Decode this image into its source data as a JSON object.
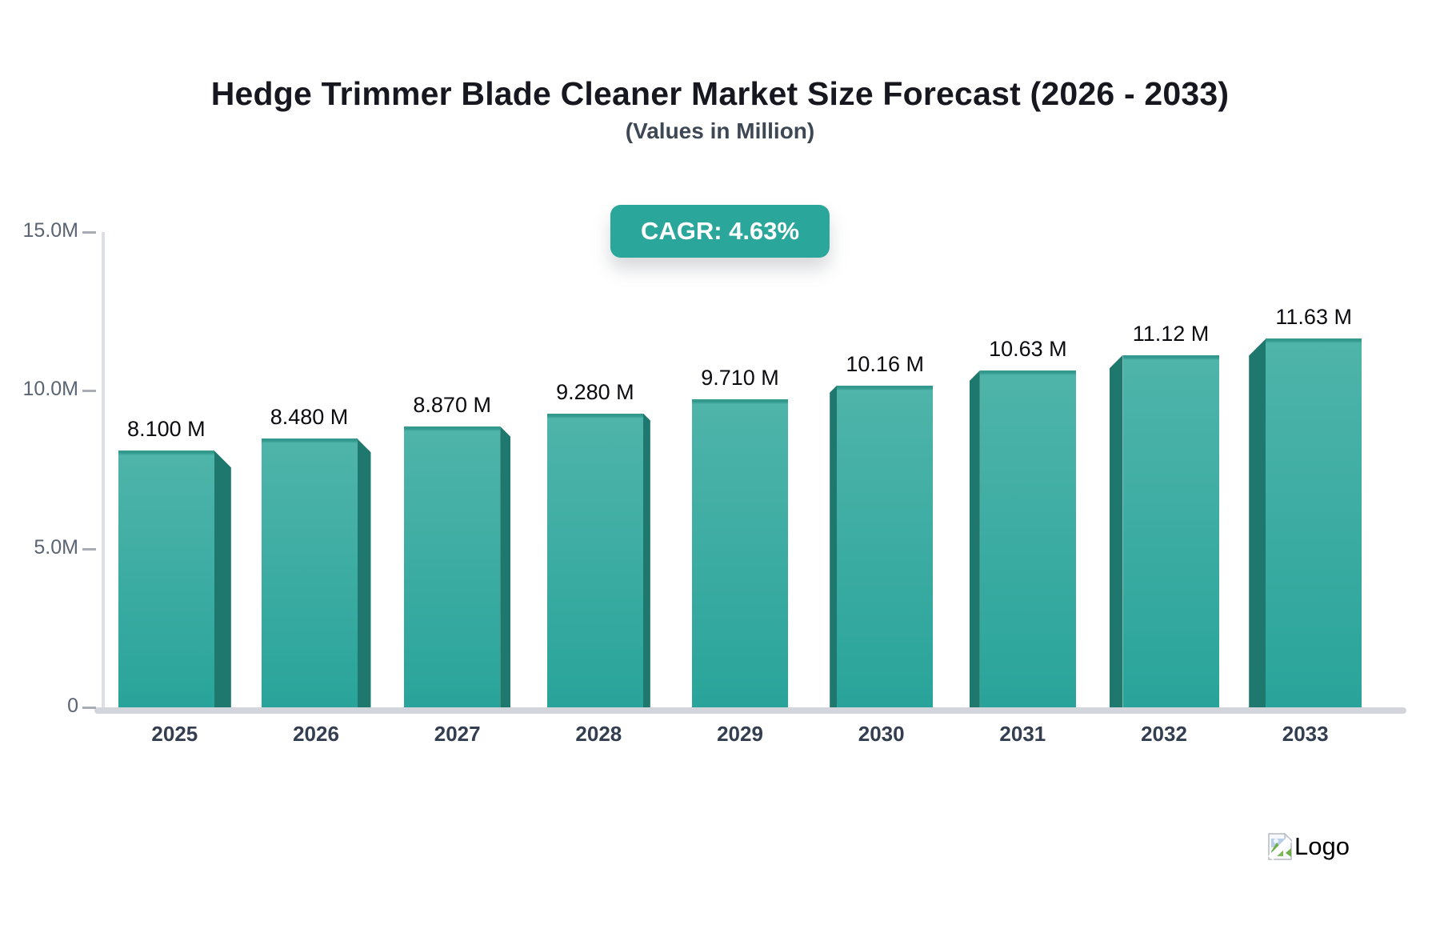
{
  "header": {
    "title": "Hedge Trimmer Blade Cleaner Market Size Forecast (2026 - 2033)",
    "subtitle": "(Values in Million)"
  },
  "badge": {
    "label": "CAGR: 4.63%",
    "bg": "#2aa69b",
    "text_color": "#ffffff"
  },
  "chart_data": {
    "type": "bar",
    "title": "Hedge Trimmer Blade Cleaner Market Size Forecast (2026 - 2033)",
    "subtitle": "(Values in Million)",
    "annotation": "CAGR: 4.63%",
    "categories": [
      "2025",
      "2026",
      "2027",
      "2028",
      "2029",
      "2030",
      "2031",
      "2032",
      "2033"
    ],
    "values": [
      8.1,
      8.48,
      8.87,
      9.28,
      9.71,
      10.16,
      10.63,
      11.12,
      11.63
    ],
    "value_labels": [
      "8.100 M",
      "8.480 M",
      "8.870 M",
      "9.280 M",
      "9.710 M",
      "10.16 M",
      "10.63 M",
      "11.12 M",
      "11.63 M"
    ],
    "unit": "Million",
    "xlabel": "",
    "ylabel": "",
    "ylim": [
      0,
      15
    ],
    "yticks": [
      {
        "label": "15.0M",
        "value": 15.0
      },
      {
        "label": "10.0M",
        "value": 10.0
      },
      {
        "label": "5.0M",
        "value": 5.0
      },
      {
        "label": "0",
        "value": 0
      }
    ],
    "grid": false,
    "legend": null,
    "bar_color_top": "#4fb4aa",
    "bar_color_bottom": "#29a49a",
    "bar_top_edge_color": "#33998f",
    "bar_side_color": "#1f786e",
    "axis_line_color": "#dcdfe4",
    "baseline_color": "#d2d6dc"
  },
  "footer": {
    "logo_alt": "Logo"
  }
}
